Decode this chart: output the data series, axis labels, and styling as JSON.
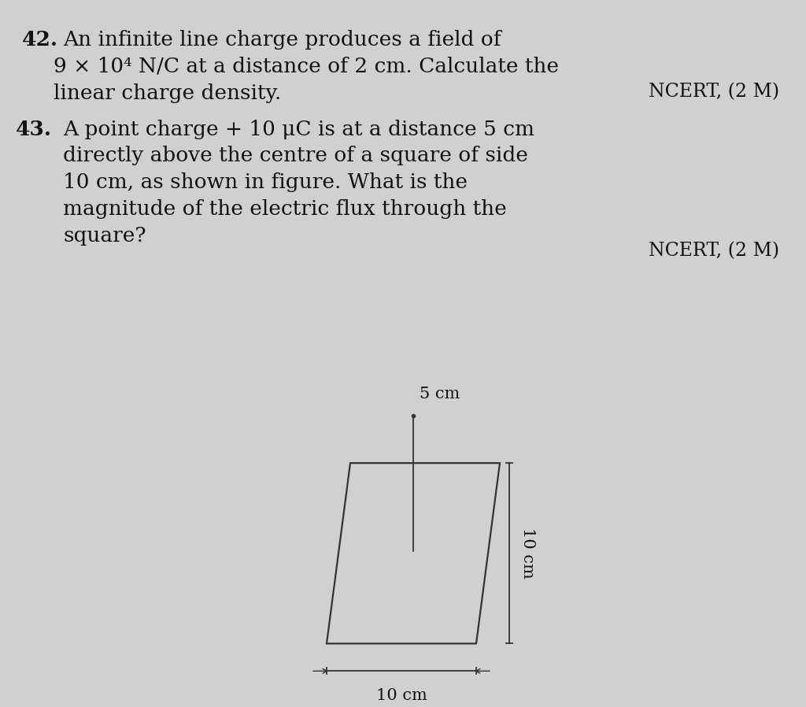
{
  "background_color": "#d0d0d0",
  "q42_number": "42.",
  "q42_line1": "An infinite line charge produces a field of",
  "q42_line2": "9 × 10⁴ N/C at a distance of 2 cm. Calculate the",
  "q42_line3": "linear charge density.",
  "q42_ncert": "NCERT, (2 M)",
  "q43_number": "43.",
  "q43_line1": "A point charge + 10 μC is at a distance 5 cm",
  "q43_line2": "directly above the centre of a square of side",
  "q43_line3": "10 cm, as shown in figure. What is the",
  "q43_line4": "magnitude of the electric flux through the",
  "q43_line5": "square?",
  "q43_ncert": "NCERT, (2 M)",
  "label_5cm": "5 cm",
  "label_10cm_side": "10 cm",
  "label_10cm_bottom": "10 cm",
  "text_color": "#111111",
  "diagram_color": "#333333",
  "font_size_main": 19,
  "font_size_ncert": 17,
  "font_size_diagram": 15
}
